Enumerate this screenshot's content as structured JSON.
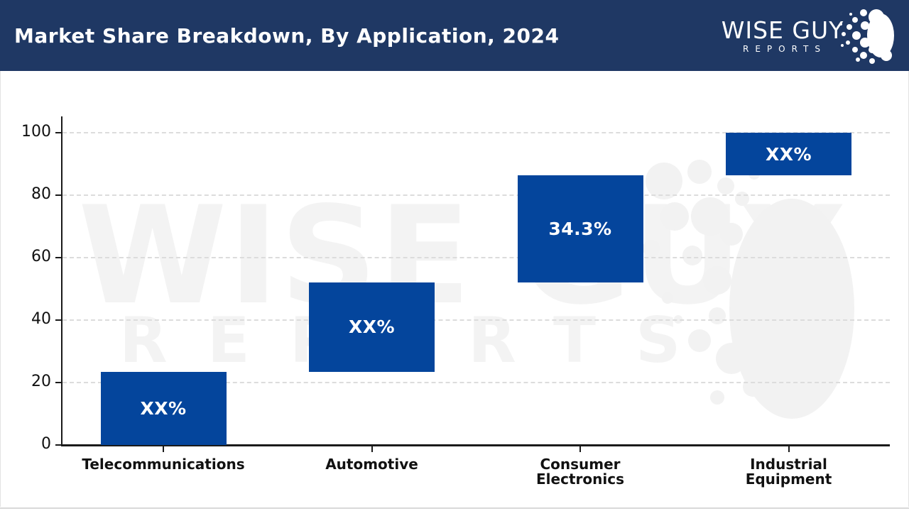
{
  "header": {
    "title": "Market Share Breakdown, By Application, 2024",
    "logo": {
      "line1": "WISE GUY",
      "line2": "REPORTS"
    }
  },
  "watermark": {
    "line1": "WISE GUY",
    "line2": "REPORTS"
  },
  "colors": {
    "header_bg": "#1f3864",
    "bar_blue": "#04459c",
    "gridline": "#dcdcdc",
    "axis": "#1a1a1a",
    "bar_label": "#ffffff"
  },
  "chart_data": {
    "type": "bar",
    "subtype": "waterfall-floating-bars",
    "title": "Market Share Breakdown, By Application, 2024",
    "categories": [
      "Telecommunications",
      "Automotive",
      "Consumer Electronics",
      "Industrial Equipment"
    ],
    "category_label_lines": [
      [
        "Telecommunications"
      ],
      [
        "Automotive"
      ],
      [
        "Consumer",
        "Electronics"
      ],
      [
        "Industrial",
        "Equipment"
      ]
    ],
    "segments": [
      {
        "category": "Telecommunications",
        "start": 0,
        "end": 23.5,
        "value": 23.5,
        "bar_label": "XX%"
      },
      {
        "category": "Automotive",
        "start": 23.5,
        "end": 52.0,
        "value": 28.5,
        "bar_label": "XX%"
      },
      {
        "category": "Consumer Electronics",
        "start": 52.0,
        "end": 86.3,
        "value": 34.3,
        "bar_label": "34.3%"
      },
      {
        "category": "Industrial Equipment",
        "start": 86.3,
        "end": 100,
        "value": 13.7,
        "bar_label": "XX%"
      }
    ],
    "xlabel": "",
    "ylabel": "",
    "ylim": [
      0,
      100
    ],
    "yticks": [
      0,
      20,
      40,
      60,
      80,
      100
    ],
    "grid": "horizontal-dashed",
    "legend": "none",
    "bar_color": "#04459c",
    "label_color": "#ffffff"
  }
}
